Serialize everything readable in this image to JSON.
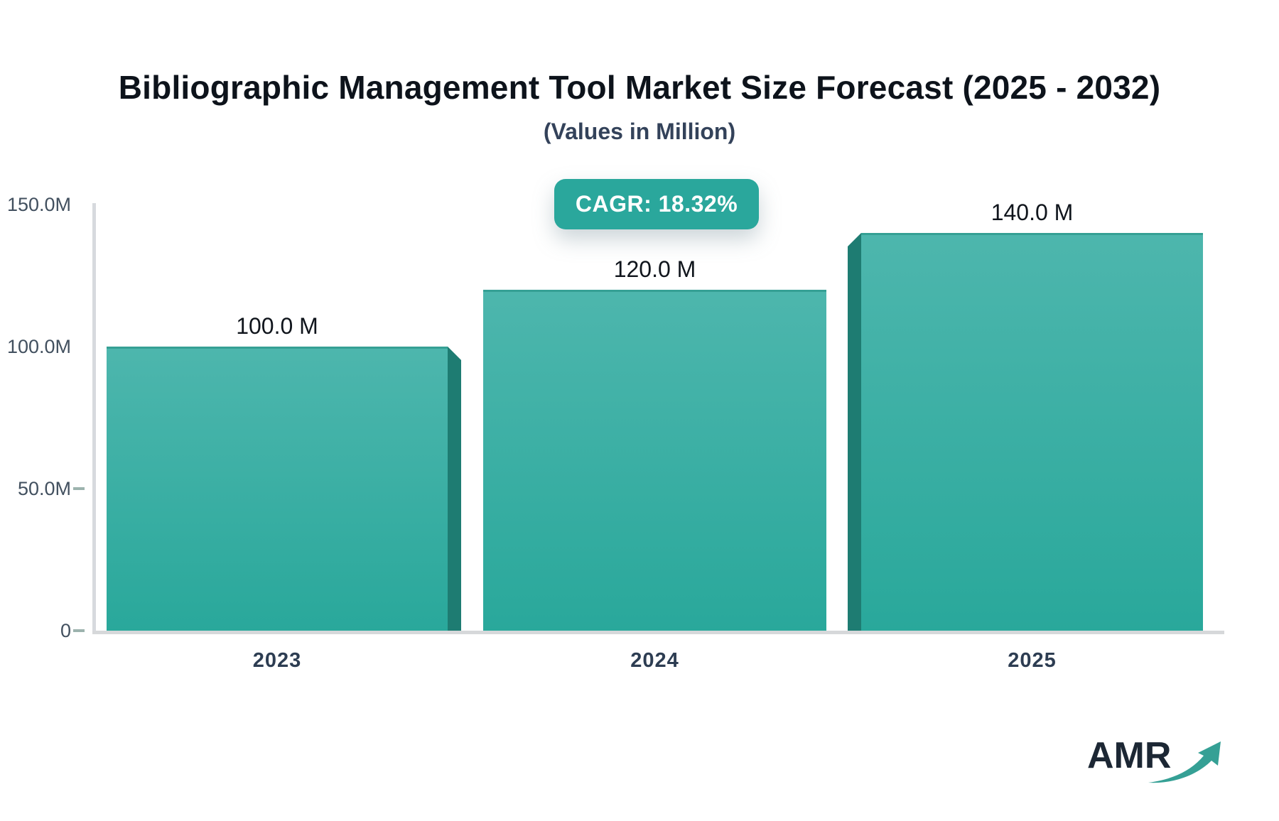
{
  "header": {
    "title": "Bibliographic Management Tool Market Size Forecast (2025 - 2032)",
    "subtitle": "(Values in Million)"
  },
  "badge": {
    "label": "CAGR: 18.32%"
  },
  "colors": {
    "bar-top": "#4db6ad",
    "bar-bottom": "#29a89b",
    "bar-edge": "#35a094",
    "bar-bevel": "#1e7c72",
    "badge-bg": "#2aa79c",
    "logo-arrow": "#35a095"
  },
  "chart_data": {
    "type": "bar",
    "categories": [
      "2023",
      "2024",
      "2025"
    ],
    "values": [
      100.0,
      120.0,
      140.0
    ],
    "value_labels": [
      "100.0 M",
      "120.0 M",
      "140.0 M"
    ],
    "title": "Bibliographic Management Tool Market Size Forecast (2025 - 2032)",
    "subtitle": "(Values in Million)",
    "xlabel": "",
    "ylabel": "",
    "ylim": [
      0,
      150
    ],
    "ytick_labels": [
      "150.0M",
      "100.0M",
      "50.0M",
      "0"
    ],
    "grid": false,
    "legend": false,
    "bar_color_gradient": [
      "#4db6ad",
      "#29a89b"
    ]
  },
  "logo": {
    "text": "AMR"
  }
}
